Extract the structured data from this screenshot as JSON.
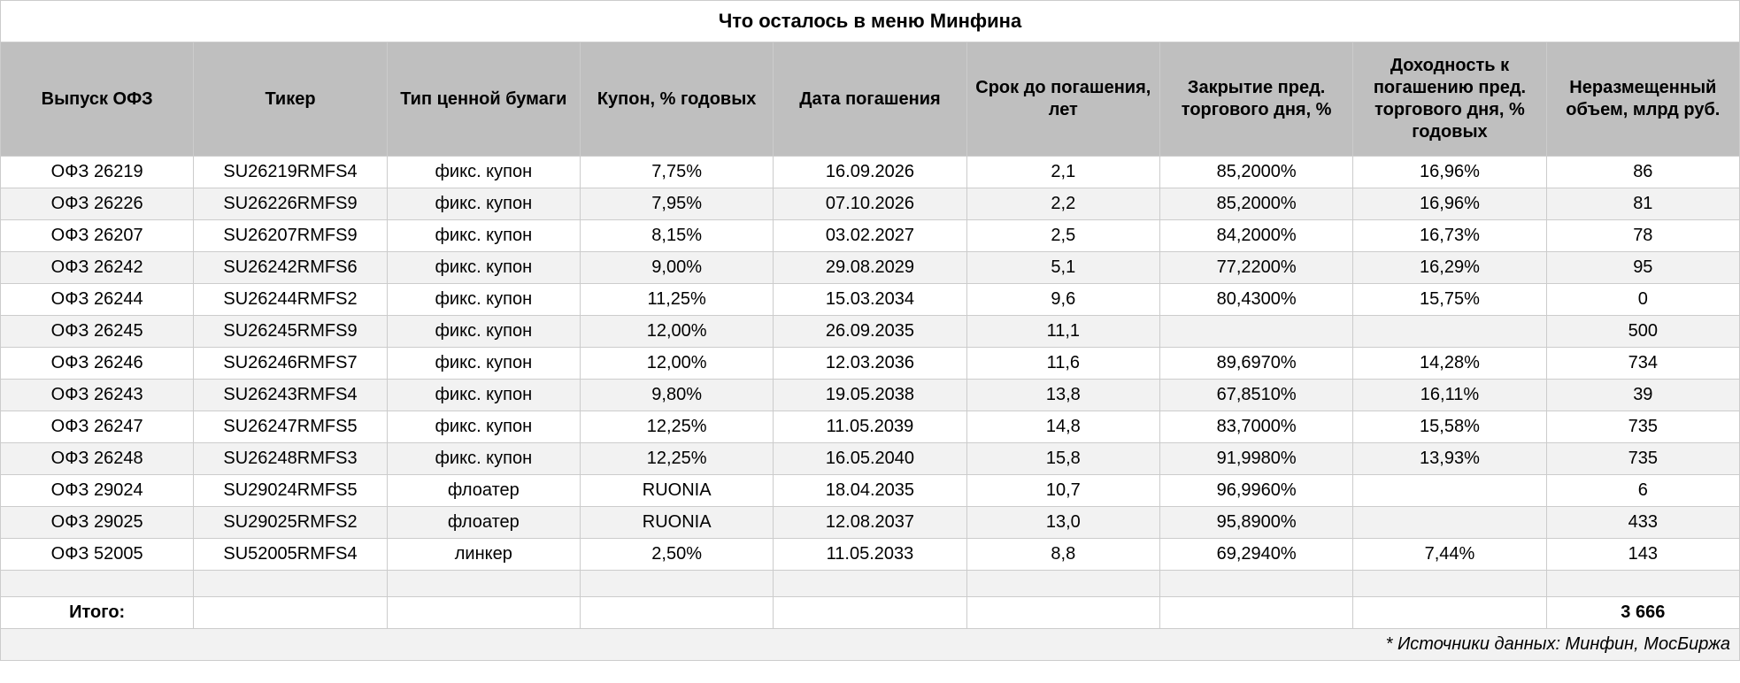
{
  "table": {
    "title": "Что осталось в меню Минфина",
    "columns": [
      "Выпуск ОФЗ",
      "Тикер",
      "Тип ценной бумаги",
      "Купон, % годовых",
      "Дата погашения",
      "Срок до погашения, лет",
      "Закрытие пред. торгового дня, %",
      "Доходность к погашению пред. торгового дня, % годовых",
      "Неразмещенный объем, млрд руб."
    ],
    "rows": [
      [
        "ОФЗ 26219",
        "SU26219RMFS4",
        "фикс. купон",
        "7,75%",
        "16.09.2026",
        "2,1",
        "85,2000%",
        "16,96%",
        "86"
      ],
      [
        "ОФЗ 26226",
        "SU26226RMFS9",
        "фикс. купон",
        "7,95%",
        "07.10.2026",
        "2,2",
        "85,2000%",
        "16,96%",
        "81"
      ],
      [
        "ОФЗ 26207",
        "SU26207RMFS9",
        "фикс. купон",
        "8,15%",
        "03.02.2027",
        "2,5",
        "84,2000%",
        "16,73%",
        "78"
      ],
      [
        "ОФЗ 26242",
        "SU26242RMFS6",
        "фикс. купон",
        "9,00%",
        "29.08.2029",
        "5,1",
        "77,2200%",
        "16,29%",
        "95"
      ],
      [
        "ОФЗ 26244",
        "SU26244RMFS2",
        "фикс. купон",
        "11,25%",
        "15.03.2034",
        "9,6",
        "80,4300%",
        "15,75%",
        "0"
      ],
      [
        "ОФЗ 26245",
        "SU26245RMFS9",
        "фикс. купон",
        "12,00%",
        "26.09.2035",
        "11,1",
        "",
        "",
        "500"
      ],
      [
        "ОФЗ 26246",
        "SU26246RMFS7",
        "фикс. купон",
        "12,00%",
        "12.03.2036",
        "11,6",
        "89,6970%",
        "14,28%",
        "734"
      ],
      [
        "ОФЗ 26243",
        "SU26243RMFS4",
        "фикс. купон",
        "9,80%",
        "19.05.2038",
        "13,8",
        "67,8510%",
        "16,11%",
        "39"
      ],
      [
        "ОФЗ 26247",
        "SU26247RMFS5",
        "фикс. купон",
        "12,25%",
        "11.05.2039",
        "14,8",
        "83,7000%",
        "15,58%",
        "735"
      ],
      [
        "ОФЗ 26248",
        "SU26248RMFS3",
        "фикс. купон",
        "12,25%",
        "16.05.2040",
        "15,8",
        "91,9980%",
        "13,93%",
        "735"
      ],
      [
        "ОФЗ 29024",
        "SU29024RMFS5",
        "флоатер",
        "RUONIA",
        "18.04.2035",
        "10,7",
        "96,9960%",
        "",
        "6"
      ],
      [
        "ОФЗ 29025",
        "SU29025RMFS2",
        "флоатер",
        "RUONIA",
        "12.08.2037",
        "13,0",
        "95,8900%",
        "",
        "433"
      ],
      [
        "ОФЗ 52005",
        "SU52005RMFS4",
        "линкер",
        "2,50%",
        "11.05.2033",
        "8,8",
        "69,2940%",
        "7,44%",
        "143"
      ]
    ],
    "total_label": "Итого:",
    "total_value": "3 666",
    "source": "* Источники данных: Минфин, МосБиржа",
    "styling": {
      "title_bg": "#ffffff",
      "header_bg": "#bfbfbf",
      "row_odd_bg": "#ffffff",
      "row_even_bg": "#f2f2f2",
      "border_color": "#cccccc",
      "title_fontsize": 22,
      "header_fontsize": 20,
      "cell_fontsize": 20,
      "font_family": "Arial",
      "header_font_weight": "bold",
      "title_font_weight": "bold",
      "total_font_weight": "bold",
      "source_font_style": "italic",
      "source_align": "right"
    }
  }
}
